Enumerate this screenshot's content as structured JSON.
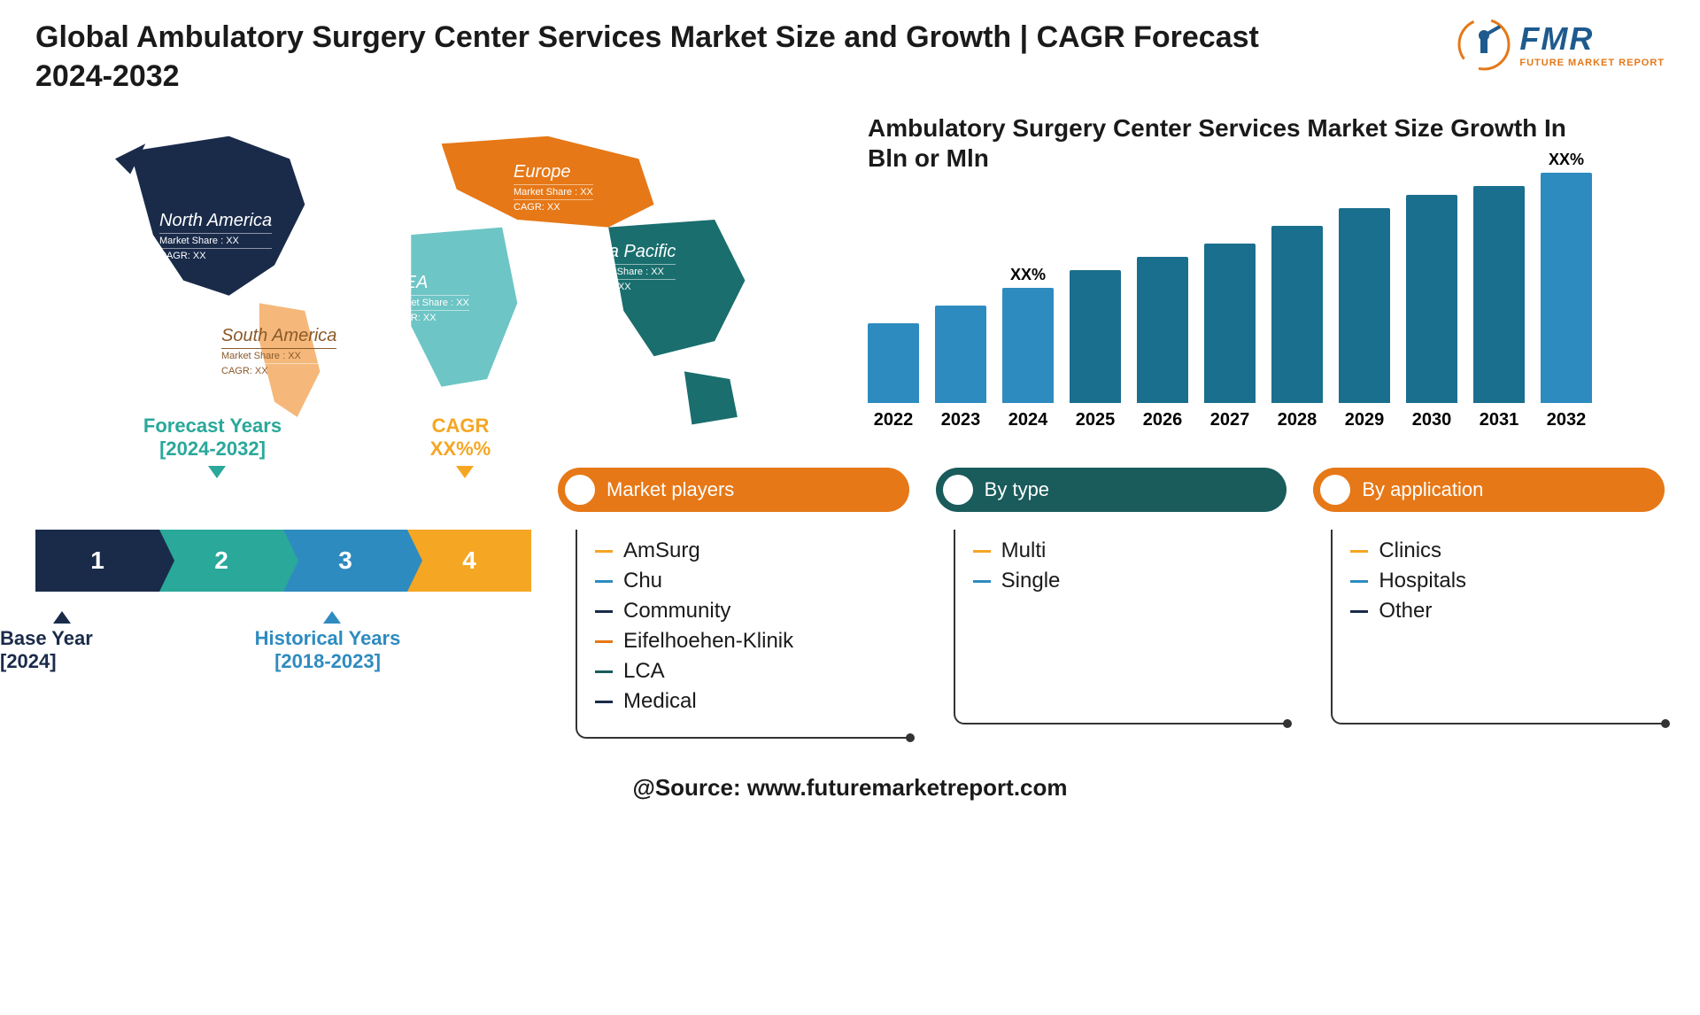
{
  "title": "Global Ambulatory Surgery Center Services Market Size and Growth | CAGR Forecast 2024-2032",
  "logo": {
    "fmr": "FMR",
    "sub": "FUTURE MARKET REPORT"
  },
  "map": {
    "regions": [
      {
        "name": "North America",
        "share": "Market Share : XX",
        "cagr": "CAGR: XX",
        "color": "#1a2b4a"
      },
      {
        "name": "South America",
        "share": "Market Share : XX",
        "cagr": "CAGR: XX",
        "color": "#f5b87a"
      },
      {
        "name": "Europe",
        "share": "Market Share : XX",
        "cagr": "CAGR: XX",
        "color": "#e67817"
      },
      {
        "name": "MEA",
        "share": "Market Share : XX",
        "cagr": "CAGR: XX",
        "color": "#6ec5c5"
      },
      {
        "name": "Asia Pacific",
        "share": "Market Share : XX",
        "cagr": "CAGR: XX",
        "color": "#1a6e6e"
      }
    ]
  },
  "chart": {
    "title": "Ambulatory Surgery Center Services Market Size Growth In\nBln or Mln",
    "type": "bar",
    "years": [
      "2022",
      "2023",
      "2024",
      "2025",
      "2026",
      "2027",
      "2028",
      "2029",
      "2030",
      "2031",
      "2032"
    ],
    "values": [
      90,
      110,
      130,
      150,
      165,
      180,
      200,
      220,
      235,
      245,
      260
    ],
    "colors": [
      "#2e8bc0",
      "#2e8bc0",
      "#2e8bc0",
      "#1a6e8e",
      "#1a6e8e",
      "#1a6e8e",
      "#1a6e8e",
      "#1a6e8e",
      "#1a6e8e",
      "#1a6e8e",
      "#2e8bc0"
    ],
    "annotations": [
      {
        "index": 2,
        "text": "XX%"
      },
      {
        "index": 10,
        "text": "XX%"
      }
    ]
  },
  "timeline": {
    "steps": [
      {
        "num": "1",
        "bg": "#1a2b4a"
      },
      {
        "num": "2",
        "bg": "#2aa89a"
      },
      {
        "num": "3",
        "bg": "#2e8bc0"
      },
      {
        "num": "4",
        "bg": "#f5a623"
      }
    ],
    "labels": {
      "base": {
        "title": "Base Year",
        "sub": "[2024]",
        "color": "#1a2b4a"
      },
      "forecast": {
        "title": "Forecast Years",
        "sub": "[2024-2032]",
        "color": "#2aa89a"
      },
      "historical": {
        "title": "Historical Years",
        "sub": "[2018-2023]",
        "color": "#2e8bc0"
      },
      "cagr": {
        "title": "CAGR",
        "sub": "XX%%",
        "color": "#f5a623"
      }
    }
  },
  "pills": [
    {
      "header": "Market players",
      "bg": "#e67817",
      "items": [
        {
          "text": "AmSurg",
          "color": "#f5a623"
        },
        {
          "text": "Chu",
          "color": "#2e8bc0"
        },
        {
          "text": "Community",
          "color": "#1a2b4a"
        },
        {
          "text": "Eifelhoehen-Klinik",
          "color": "#e67817"
        },
        {
          "text": "LCA",
          "color": "#1a5b5b"
        },
        {
          "text": "Medical",
          "color": "#1a2b4a"
        }
      ]
    },
    {
      "header": "By type",
      "bg": "#1a5b5b",
      "items": [
        {
          "text": "Multi",
          "color": "#f5a623"
        },
        {
          "text": "Single",
          "color": "#2e8bc0"
        }
      ]
    },
    {
      "header": "By application",
      "bg": "#e67817",
      "items": [
        {
          "text": "Clinics",
          "color": "#f5a623"
        },
        {
          "text": "Hospitals",
          "color": "#2e8bc0"
        },
        {
          "text": "Other",
          "color": "#1a2b4a"
        }
      ]
    }
  ],
  "source": "@Source: www.futuremarketreport.com"
}
